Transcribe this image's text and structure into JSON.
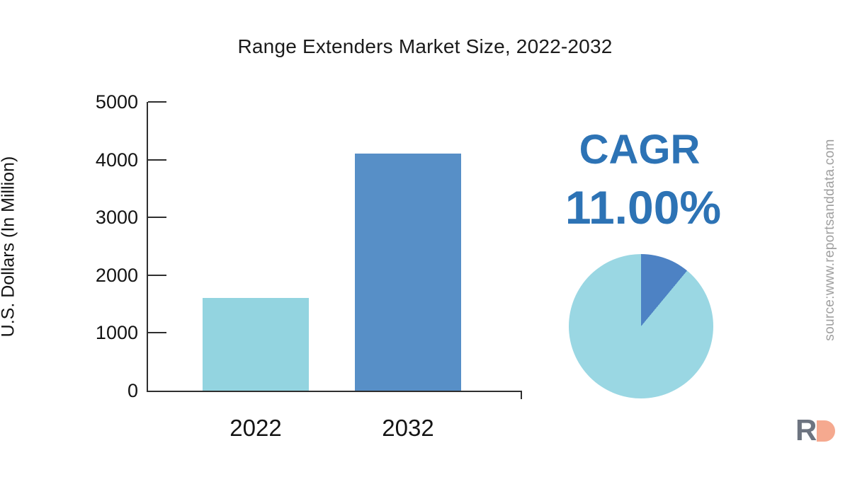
{
  "title": "Range Extenders Market Size, 2022-2032",
  "source_text": "source:www.reportsanddata.com",
  "cagr": {
    "label": "CAGR",
    "value": "11.00%"
  },
  "logo": {
    "letter": "R"
  },
  "colors": {
    "bar_2022": "#93d4e0",
    "bar_2032": "#578fc7",
    "pie_light": "#9ad7e3",
    "pie_wedge": "#4d82c4",
    "cagr_text": "#2d73b5",
    "source_text": "#a0a0a0",
    "logo_r": "#6d7480",
    "logo_d": "#f5a98f",
    "axis": "#2e2e2e"
  },
  "chart_data": [
    {
      "type": "bar",
      "title": "Range Extenders Market Size, 2022-2032",
      "categories": [
        "2022",
        "2032"
      ],
      "values": [
        1600,
        4100
      ],
      "xlabel": "",
      "ylabel": "U.S. Dollars (In Million)",
      "ylim": [
        0,
        5000
      ],
      "yticks": [
        0,
        1000,
        2000,
        3000,
        4000,
        5000
      ],
      "bar_colors": [
        "#93d4e0",
        "#578fc7"
      ],
      "grid": false,
      "legend": "none"
    },
    {
      "type": "pie",
      "annotation": "CAGR 11.00%",
      "slices": [
        {
          "name": "CAGR share",
          "value": 11,
          "color": "#4d82c4"
        },
        {
          "name": "remainder",
          "value": 89,
          "color": "#9ad7e3"
        }
      ],
      "start_angle_deg": 0,
      "direction": "clockwise"
    }
  ]
}
